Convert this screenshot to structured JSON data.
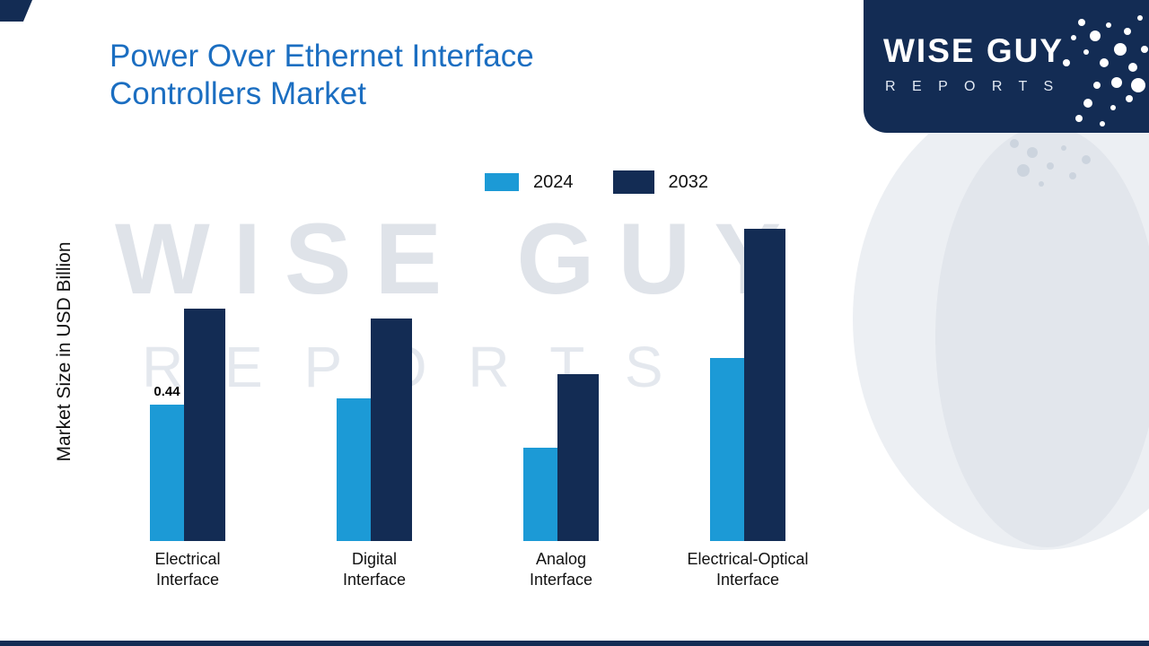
{
  "header": {
    "title_lines": [
      "Power Over Ethernet Interface",
      "Controllers Market"
    ]
  },
  "logo": {
    "name": "WISE GUY",
    "reports": "R E P O R T S"
  },
  "watermark": {
    "name": "WISE GUY",
    "reports": "R E P O R T S"
  },
  "colors": {
    "accent_blue": "#1c9ad6",
    "navy": "#132c54",
    "title_blue": "#1b6ec1"
  },
  "chart_data": {
    "type": "bar",
    "title": "Power Over Ethernet Interface Controllers Market",
    "xlabel": "",
    "ylabel": "Market Size in USD Billion",
    "ylim": [
      0,
      1.1
    ],
    "grid": false,
    "legend_position": "top",
    "categories": [
      [
        "Electrical",
        "Interface"
      ],
      [
        "Digital",
        "Interface"
      ],
      [
        "Analog",
        "Interface"
      ],
      [
        "Electrical-Optical",
        "Interface"
      ]
    ],
    "series": [
      {
        "name": "2024",
        "color": "#1c9ad6",
        "values": [
          0.44,
          0.46,
          0.3,
          0.59
        ]
      },
      {
        "name": "2032",
        "color": "#132c54",
        "values": [
          0.75,
          0.72,
          0.54,
          1.01
        ]
      }
    ],
    "annotations": [
      {
        "text": "0.44",
        "category": 0,
        "series": 0
      }
    ]
  }
}
